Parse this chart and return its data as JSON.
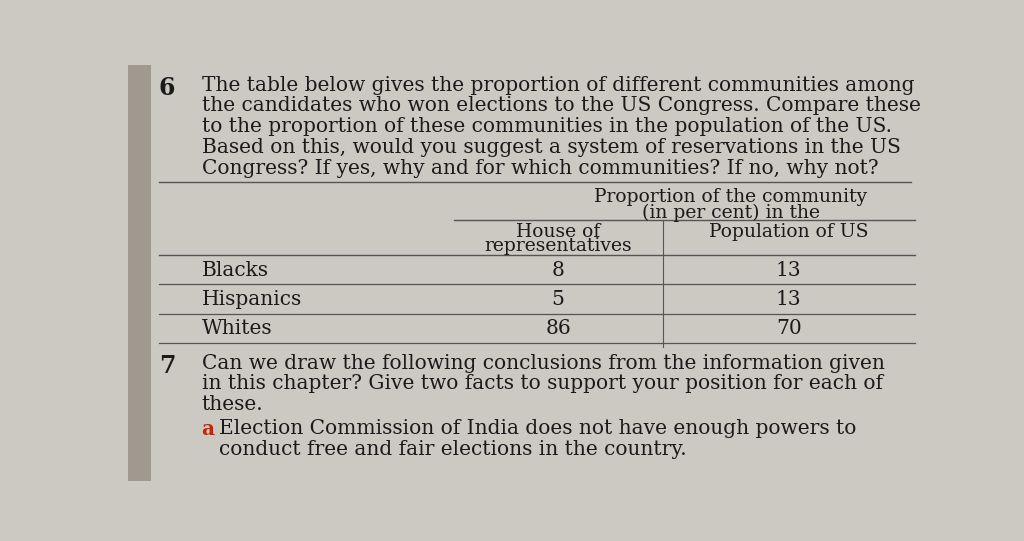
{
  "bg_color": "#ccc8c2",
  "sidebar_color": "#a0998f",
  "text_color": "#1a1a1a",
  "q6_number": "6",
  "q6_text_lines": [
    "The table below gives the proportion of different communities among",
    "the candidates who won elections to the US Congress. Compare these",
    "to the proportion of these communities in the population of the US.",
    "Based on this, would you suggest a system of reservations in the US",
    "Congress? If yes, why and for which communities? If no, why not?"
  ],
  "table_header_line1": "Proportion of the community",
  "table_header_line2": "(in per cent) in the",
  "table_col1_line1": "House of",
  "table_col1_line2": "representatives",
  "table_col2": "Population of US",
  "table_rows": [
    {
      "community": "Blacks",
      "house": "8",
      "population": "13"
    },
    {
      "community": "Hispanics",
      "house": "5",
      "population": "13"
    },
    {
      "community": "Whites",
      "house": "86",
      "population": "70"
    }
  ],
  "q7_number": "7",
  "q7_text_lines": [
    "Can we draw the following conclusions from the information given",
    "in this chapter? Give two facts to support your position for each of",
    "these."
  ],
  "q7a_label": "a",
  "q7a_text_lines": [
    "Election Commission of India does not have enough powers to",
    "conduct free and fair elections in the country."
  ],
  "line_color": "#555555",
  "red_color": "#cc2200",
  "font_size_main": 14.5,
  "font_size_table": 13.5,
  "font_size_number": 17
}
